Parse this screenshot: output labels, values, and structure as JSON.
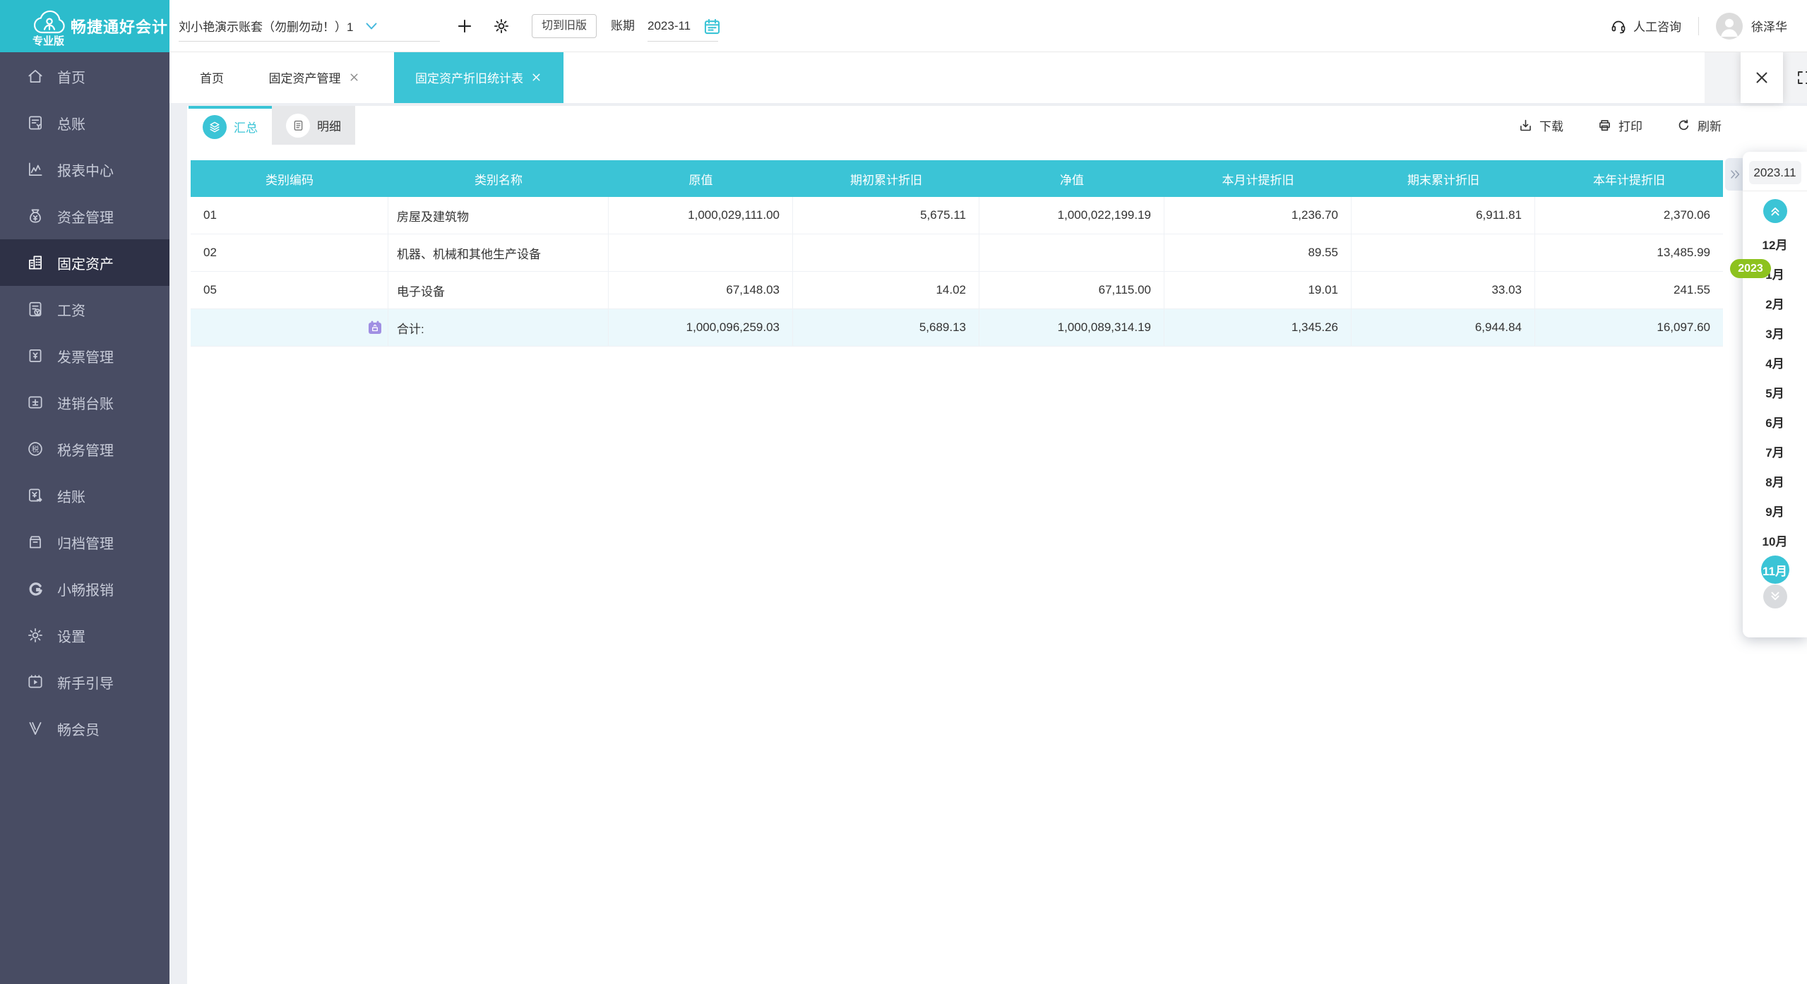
{
  "topbar": {
    "logo_title": "畅捷通好会计",
    "logo_subtitle": "专业版",
    "account_name": "刘小艳演示账套（勿删勿动！）1",
    "switch_old_label": "切到旧版",
    "period_label": "账期",
    "period_value": "2023-11",
    "support_label": "人工咨询",
    "user_name": "徐泽华"
  },
  "sidebar": {
    "items": [
      {
        "id": "home",
        "label": "首页",
        "icon": "home-icon",
        "active": false
      },
      {
        "id": "ledger",
        "label": "总账",
        "icon": "ledger-icon",
        "active": false
      },
      {
        "id": "reports",
        "label": "报表中心",
        "icon": "report-chart-icon",
        "active": false
      },
      {
        "id": "funds",
        "label": "资金管理",
        "icon": "money-bag-icon",
        "active": false
      },
      {
        "id": "fixed-assets",
        "label": "固定资产",
        "icon": "building-icon",
        "active": true
      },
      {
        "id": "salary",
        "label": "工资",
        "icon": "salary-icon",
        "active": false
      },
      {
        "id": "invoice",
        "label": "发票管理",
        "icon": "invoice-icon",
        "active": false
      },
      {
        "id": "inventory",
        "label": "进销台账",
        "icon": "inventory-icon",
        "active": false
      },
      {
        "id": "tax",
        "label": "税务管理",
        "icon": "tax-icon",
        "active": false
      },
      {
        "id": "closing",
        "label": "结账",
        "icon": "closing-icon",
        "active": false
      },
      {
        "id": "archive",
        "label": "归档管理",
        "icon": "archive-icon",
        "active": false
      },
      {
        "id": "reimburse",
        "label": "小畅报销",
        "icon": "reimburse-icon",
        "active": false
      },
      {
        "id": "settings",
        "label": "设置",
        "icon": "gear-icon",
        "active": false
      },
      {
        "id": "guide",
        "label": "新手引导",
        "icon": "guide-video-icon",
        "active": false
      },
      {
        "id": "member",
        "label": "畅会员",
        "icon": "member-v-icon",
        "active": false
      }
    ]
  },
  "tabs": [
    {
      "label": "首页",
      "closable": false,
      "active": false
    },
    {
      "label": "固定资产管理",
      "closable": true,
      "active": false
    },
    {
      "label": "固定资产折旧统计表",
      "closable": true,
      "active": true
    }
  ],
  "view_tabs": [
    {
      "label": "汇总",
      "icon": "summary-layers-icon",
      "active": true
    },
    {
      "label": "明细",
      "icon": "detail-list-icon",
      "active": false
    }
  ],
  "toolbar": {
    "download_label": "下载",
    "print_label": "打印",
    "refresh_label": "刷新"
  },
  "table": {
    "columns": [
      "类别编码",
      "类别名称",
      "原值",
      "期初累计折旧",
      "净值",
      "本月计提折旧",
      "期末累计折旧",
      "本年计提折旧"
    ],
    "rows": [
      [
        "01",
        "房屋及建筑物",
        "1,000,029,111.00",
        "5,675.11",
        "1,000,022,199.19",
        "1,236.70",
        "6,911.81",
        "2,370.06"
      ],
      [
        "02",
        "机器、机械和其他生产设备",
        "",
        "",
        "",
        "89.55",
        "",
        "13,485.99"
      ],
      [
        "05",
        "电子设备",
        "67,148.03",
        "14.02",
        "67,115.00",
        "19.01",
        "33.03",
        "241.55"
      ]
    ],
    "total_label": "合计:",
    "totals": [
      "1,000,096,259.03",
      "5,689.13",
      "1,000,089,314.19",
      "1,345.26",
      "6,944.84",
      "16,097.60"
    ]
  },
  "date_panel": {
    "current_period": "2023.11",
    "year_badge": "2023",
    "months": [
      "12月",
      "1月",
      "2月",
      "3月",
      "4月",
      "5月",
      "6月",
      "7月",
      "8月",
      "9月",
      "10月",
      "11月"
    ],
    "selected_month": "11月"
  },
  "colors": {
    "accent_cyan": "#3bc4d6",
    "logo_cyan": "#2cbccc",
    "sidebar_bg": "#484c63",
    "sidebar_active_bg": "#2e3146",
    "badge_green": "#8dc21f",
    "total_row_bg": "#ebf8fc",
    "total_icon_purple": "#a08fe3"
  }
}
